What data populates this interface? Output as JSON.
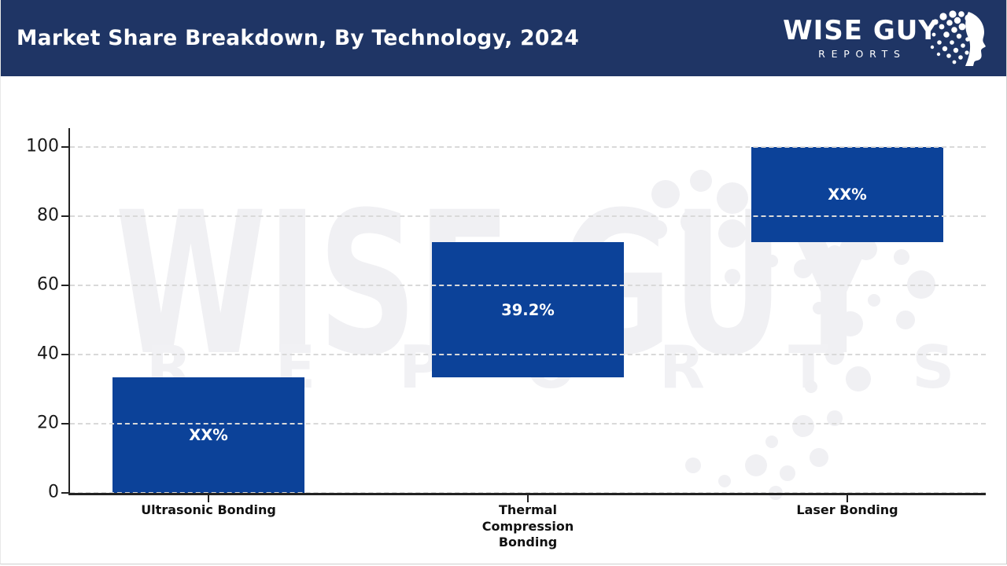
{
  "header": {
    "title": "Market Share Breakdown, By Technology, 2024",
    "logo_line1": "WISE GUY",
    "logo_line2": "REPORTS"
  },
  "watermark": {
    "line1": "WISE GUY",
    "line2": "R E P O R T S"
  },
  "colors": {
    "header_bg": "#1f3565",
    "bar": "#0c4299",
    "bar_label": "#ffffff",
    "axis": "#222222",
    "grid": "#d9d9d9",
    "tick_text": "#1a1a1a"
  },
  "chart_data": {
    "type": "bar",
    "subtype": "floating-segment-waterfall",
    "title": "Market Share Breakdown, By Technology, 2024",
    "categories": [
      "Ultrasonic Bonding",
      "Thermal Compression Bonding",
      "Laser Bonding"
    ],
    "category_label_lines": [
      [
        "Ultrasonic Bonding"
      ],
      [
        "Thermal",
        "Compression",
        "Bonding"
      ],
      [
        "Laser Bonding"
      ]
    ],
    "segments": [
      {
        "category": "Ultrasonic Bonding",
        "base": 0,
        "value": 33.3,
        "top": 33.3,
        "label": "XX%"
      },
      {
        "category": "Thermal Compression Bonding",
        "base": 33.3,
        "value": 39.2,
        "top": 72.5,
        "label": "39.2%"
      },
      {
        "category": "Laser Bonding",
        "base": 72.5,
        "value": 27.5,
        "top": 100,
        "label": "XX%"
      }
    ],
    "yticks": [
      0,
      20,
      40,
      60,
      80,
      100
    ],
    "ylim": [
      0,
      105
    ],
    "grid": "horizontal-dashed",
    "legend": "none",
    "xlabel": "",
    "ylabel": ""
  }
}
